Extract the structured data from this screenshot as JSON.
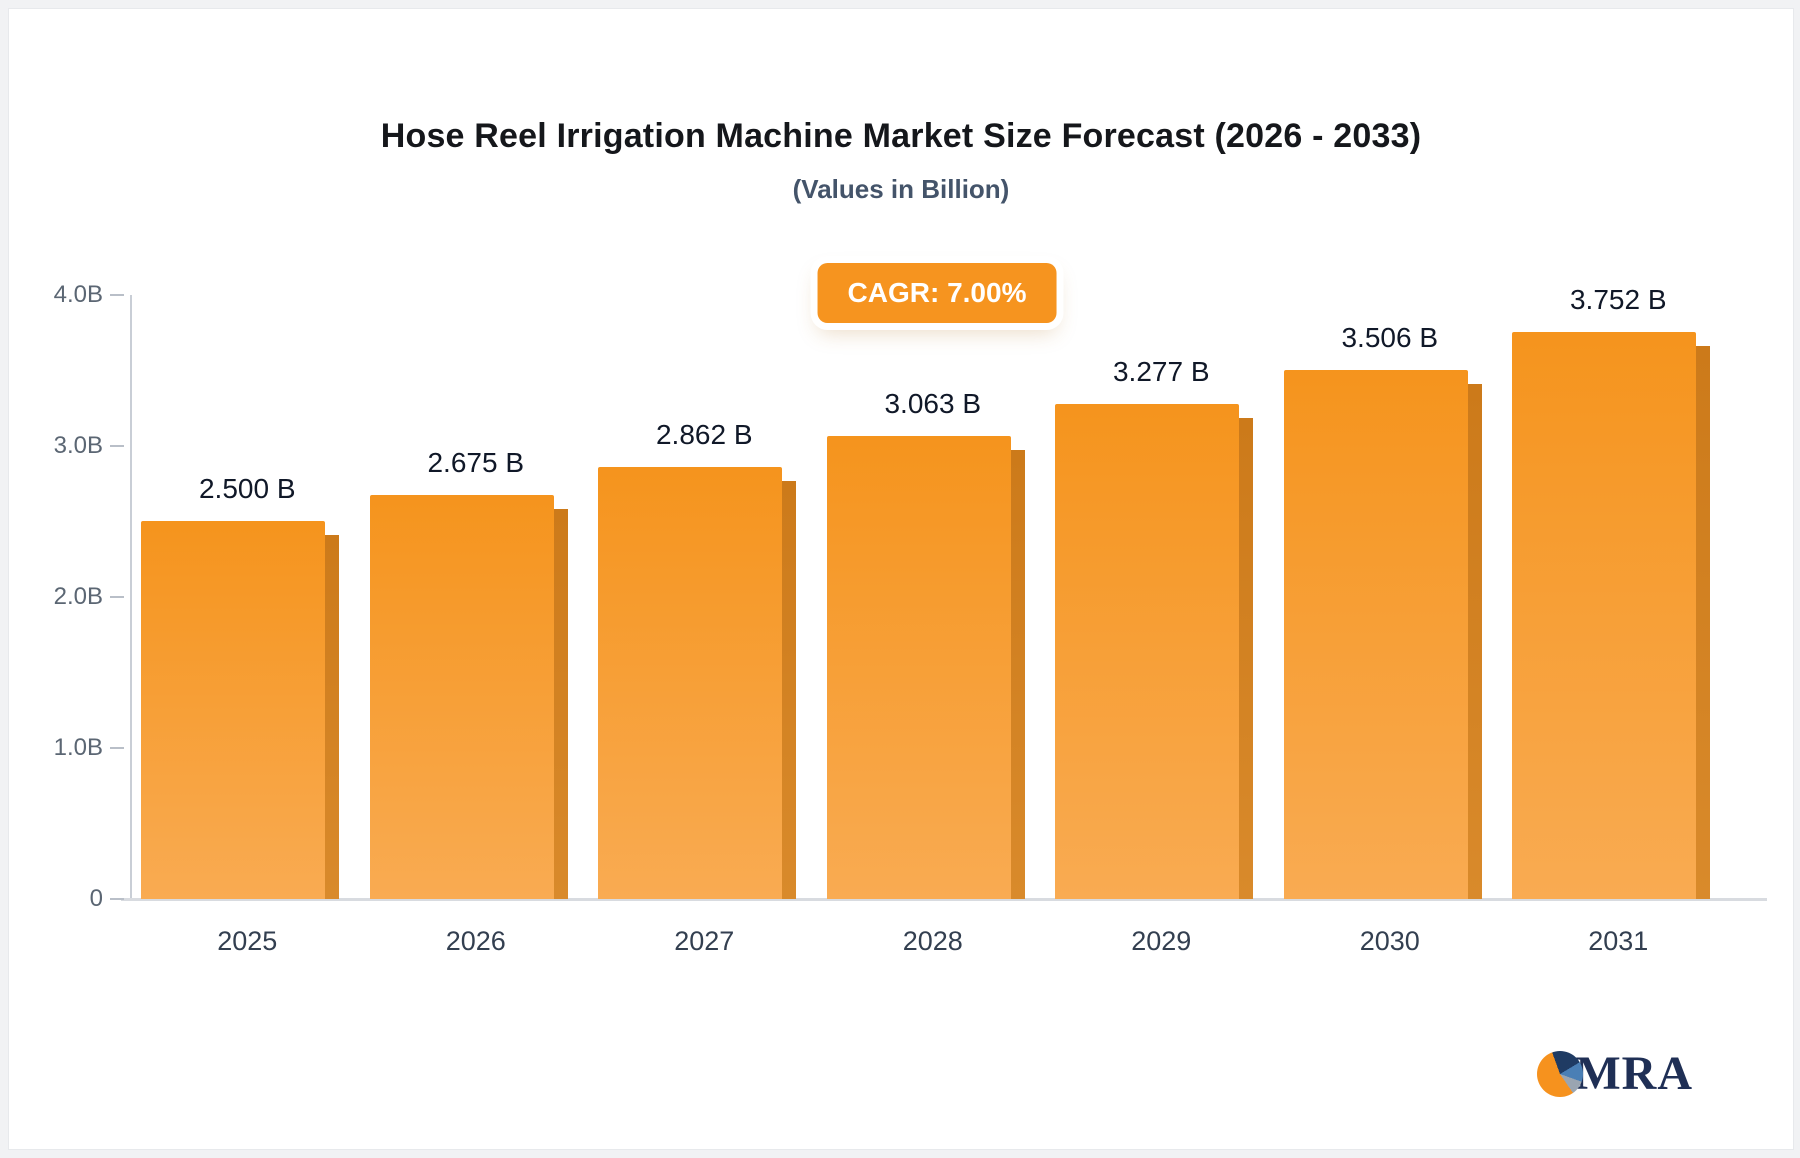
{
  "title": "Hose Reel Irrigation Machine Market Size Forecast (2026 - 2033)",
  "subtitle": "(Values in Billion)",
  "badge": {
    "label": "CAGR: 7.00%",
    "bg": "#f6941f",
    "text_color": "#ffffff"
  },
  "chart_data": {
    "type": "bar",
    "categories": [
      "2025",
      "2026",
      "2027",
      "2028",
      "2029",
      "2030",
      "2031"
    ],
    "values": [
      2.5,
      2.675,
      2.862,
      3.063,
      3.277,
      3.506,
      3.752
    ],
    "value_labels": [
      "2.500 B",
      "2.675 B",
      "2.862 B",
      "3.063 B",
      "3.277 B",
      "3.506 B",
      "3.752 B"
    ],
    "title": "Hose Reel Irrigation Machine Market Size Forecast (2026 - 2033)",
    "xlabel": "",
    "ylabel": "",
    "ylim": [
      0,
      4
    ],
    "y_ticks": [
      {
        "label": "4.0B",
        "value": 4
      },
      {
        "label": "3.0B",
        "value": 3
      },
      {
        "label": "2.0B",
        "value": 2
      },
      {
        "label": "1.0B",
        "value": 1
      },
      {
        "label": "0",
        "value": 0
      }
    ],
    "grid": false,
    "legend": false,
    "bar_color_top": "#f5941d",
    "bar_color_bottom": "#f9ab52",
    "bar_side_color": "#cc7a1a"
  },
  "logo": {
    "text": "MRA"
  }
}
